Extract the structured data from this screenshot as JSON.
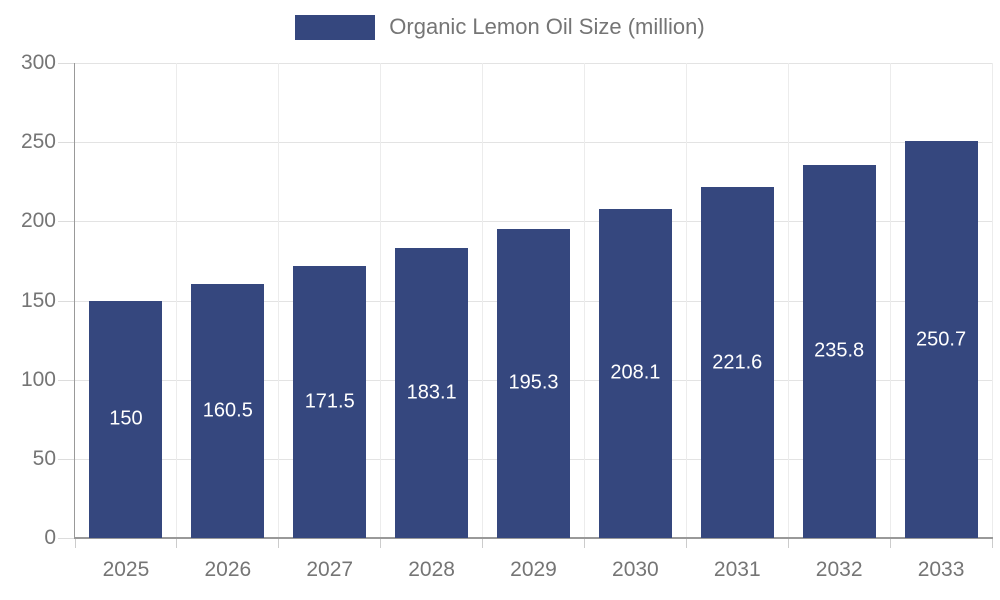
{
  "legend": {
    "label": "Organic Lemon Oil Size (million)"
  },
  "chart_data": {
    "type": "bar",
    "title": "",
    "xlabel": "",
    "ylabel": "",
    "series_name": "Organic Lemon Oil Size (million)",
    "categories": [
      "2025",
      "2026",
      "2027",
      "2028",
      "2029",
      "2030",
      "2031",
      "2032",
      "2033"
    ],
    "values": [
      150,
      160.5,
      171.5,
      183.1,
      195.3,
      208.1,
      221.6,
      235.8,
      250.7
    ],
    "value_labels": [
      "150",
      "160.5",
      "171.5",
      "183.1",
      "195.3",
      "208.1",
      "221.6",
      "235.8",
      "250.7"
    ],
    "ylim": [
      0,
      300
    ],
    "yticks": [
      0,
      50,
      100,
      150,
      200,
      250,
      300
    ],
    "grid": true,
    "legend_position": "top",
    "colors": {
      "bar": "#35477E",
      "bar_label": "#ffffff",
      "axis_line": "#999999",
      "axis_text": "#757575",
      "gridline": "#e3e3e3",
      "legend_text": "#757575"
    }
  }
}
